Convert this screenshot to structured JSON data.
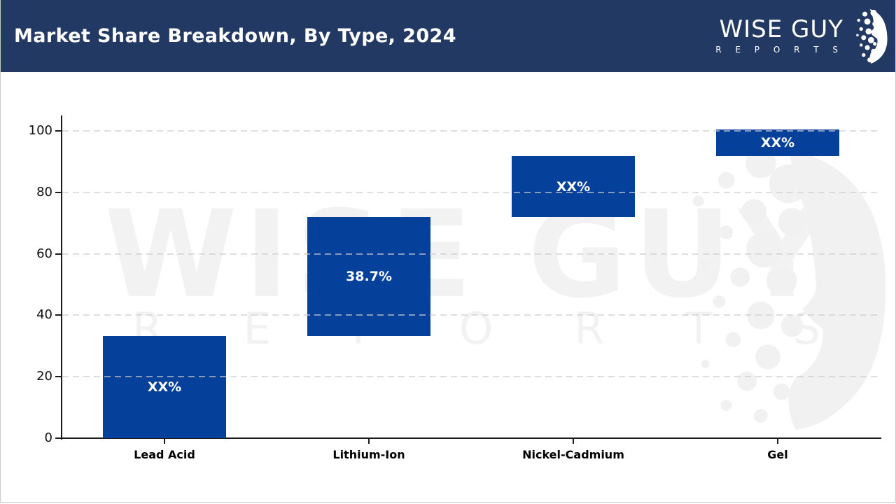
{
  "header": {
    "title": "Market Share Breakdown, By Type, 2024",
    "logo_line1": "WISE GUY",
    "logo_line2": "R E P O R T S"
  },
  "watermark": {
    "line1": "WISE GUY",
    "line2": "R E P O R T S"
  },
  "colors": {
    "header_bg": "#223963",
    "bar_fill": "#05409a",
    "bar_label": "#ffffff",
    "grid": "#dcdcdc",
    "axis": "#1a1a1a",
    "watermark": "#f2f2f2"
  },
  "chart_data": {
    "type": "bar",
    "subtype": "floating-waterfall",
    "title": "Market Share Breakdown, By Type, 2024",
    "categories": [
      "Lead Acid",
      "Lithium-Ion",
      "Nickel-Cadmium",
      "Gel"
    ],
    "segments": [
      {
        "category": "Lead Acid",
        "start": 0,
        "end": 33.2,
        "label": "XX%"
      },
      {
        "category": "Lithium-Ion",
        "start": 33.2,
        "end": 71.9,
        "label": "38.7%"
      },
      {
        "category": "Nickel-Cadmium",
        "start": 71.9,
        "end": 91.7,
        "label": "XX%"
      },
      {
        "category": "Gel",
        "start": 91.7,
        "end": 100.4,
        "label": "XX%"
      }
    ],
    "visible_values": {
      "Lithium-Ion": 38.7
    },
    "xlabel": "",
    "ylabel": "",
    "yticks": [
      0,
      20,
      40,
      60,
      80,
      100
    ],
    "ylim": [
      0,
      105
    ],
    "grid": "horizontal-dashed-over-bars",
    "legend": "none",
    "bar_color": "#05409a",
    "bar_label_color": "#ffffff"
  }
}
